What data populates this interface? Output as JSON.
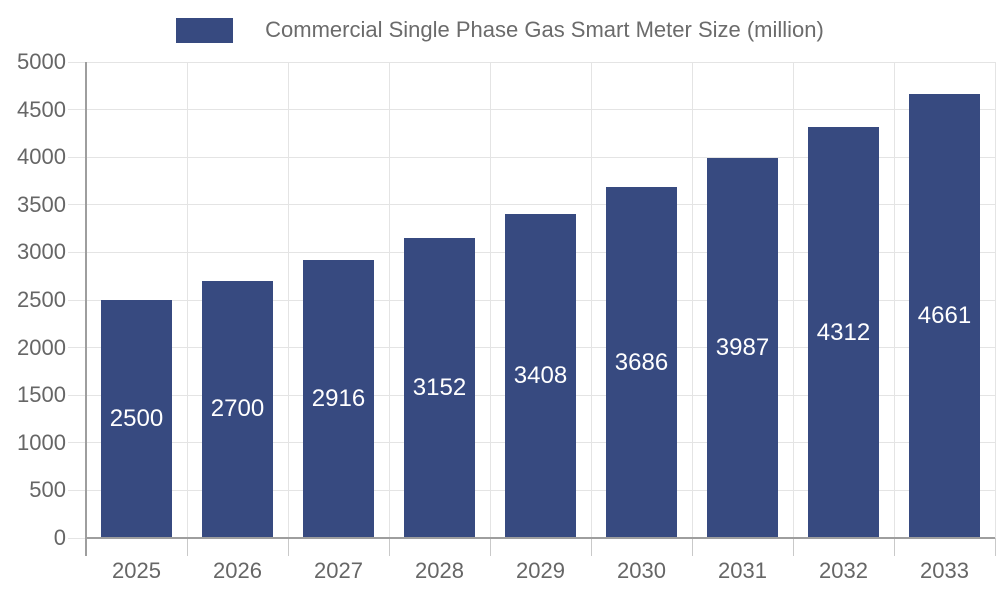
{
  "chart_data": {
    "type": "bar",
    "title": "Commercial Single Phase Gas Smart Meter Size (million)",
    "categories": [
      "2025",
      "2026",
      "2027",
      "2028",
      "2029",
      "2030",
      "2031",
      "2032",
      "2033"
    ],
    "values": [
      2500,
      2700,
      2916,
      3152,
      3408,
      3686,
      3987,
      4312,
      4661
    ],
    "xlabel": "",
    "ylabel": "",
    "ylim": [
      0,
      5000
    ],
    "ytick_step": 500,
    "grid": true,
    "legend_position": "top",
    "colors": {
      "bar": "#374a80",
      "value_label": "#ffffff",
      "axis_text": "#666666",
      "legend_text": "#6b6b6b",
      "axis_line": "#9e9e9e",
      "gridline": "#e4e4e4",
      "tick": "#c9c9c9",
      "background": "#ffffff"
    }
  }
}
